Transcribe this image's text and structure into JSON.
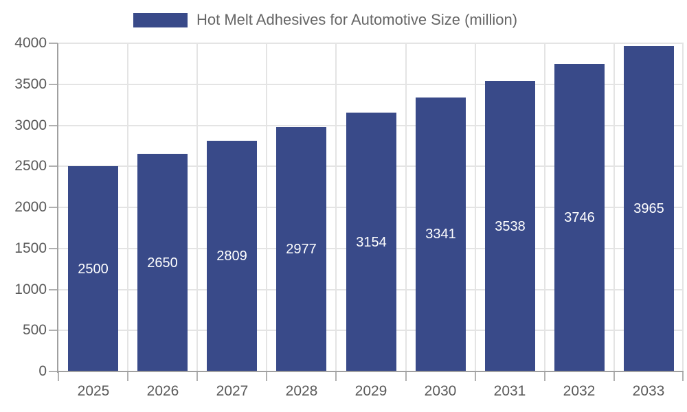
{
  "legend": {
    "items": [
      {
        "label": "Hot Melt Adhesives for Automotive Size (million)",
        "color": "#394A89"
      }
    ]
  },
  "chart_data": {
    "type": "bar",
    "title": "Hot Melt Adhesives for Automotive Size (million)",
    "categories": [
      "2025",
      "2026",
      "2027",
      "2028",
      "2029",
      "2030",
      "2031",
      "2032",
      "2033"
    ],
    "values": [
      2500,
      2650,
      2809,
      2977,
      3154,
      3341,
      3538,
      3746,
      3965
    ],
    "xlabel": "",
    "ylabel": "",
    "ylim": [
      0,
      4000
    ],
    "yticks": [
      0,
      500,
      1000,
      1500,
      2000,
      2500,
      3000,
      3500,
      4000
    ],
    "grid": true,
    "legend_position": "top",
    "bar_color": "#394A89",
    "value_label_color": "#FFFFFF",
    "axis_color": "#A0A0A0",
    "tick_mark_color": "#B0B0B0",
    "gridline_color": "#E4E4E4",
    "tick_label_color": "#5A5A5A",
    "legend_text_color": "#666666",
    "background_color": "#FFFFFF"
  }
}
